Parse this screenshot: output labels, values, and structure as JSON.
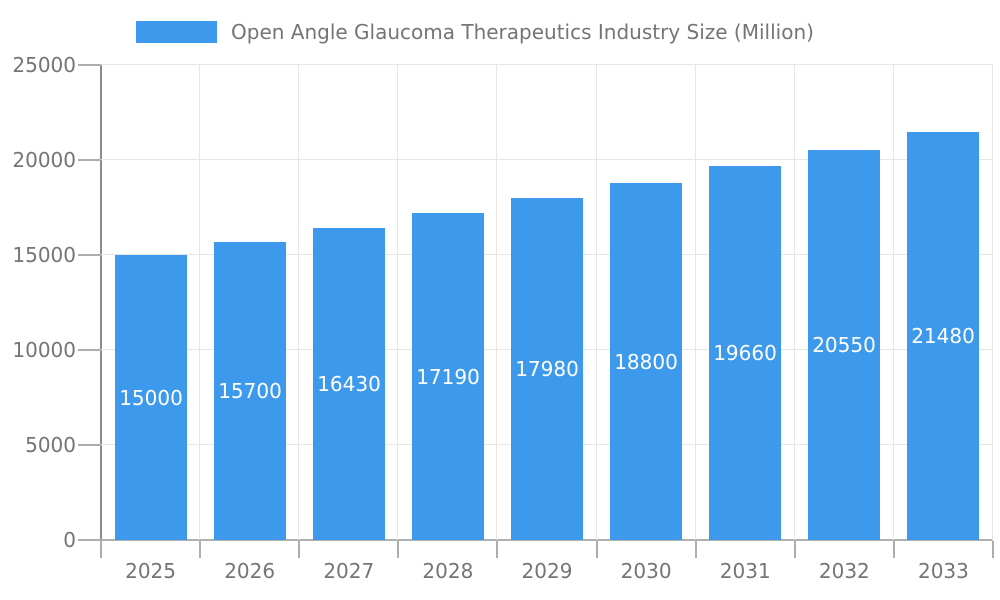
{
  "chart_data": {
    "type": "bar",
    "title": "Open Angle Glaucoma Therapeutics Industry Size (Million)",
    "categories": [
      "2025",
      "2026",
      "2027",
      "2028",
      "2029",
      "2030",
      "2031",
      "2032",
      "2033"
    ],
    "values": [
      15000,
      15700,
      16430,
      17190,
      17980,
      18800,
      19660,
      20550,
      21480
    ],
    "bar_labels": [
      "15000",
      "15700",
      "16430",
      "17190",
      "17980",
      "18800",
      "19660",
      "20550",
      "21480"
    ],
    "xlabel": "",
    "ylabel": "",
    "ylim": [
      0,
      25000
    ],
    "yticks": [
      0,
      5000,
      10000,
      15000,
      20000,
      25000
    ],
    "ytick_labels": [
      "0",
      "5000",
      "10000",
      "15000",
      "20000",
      "25000"
    ],
    "grid": "on",
    "legend_position": "top",
    "colors": {
      "bar": "#3C99EC",
      "bar_value_text": "#FFFFFF",
      "gridline": "#E6E6E6",
      "y_axis_line": "#8C8C8C",
      "x_axis_line": "#B0B0B0",
      "tick": "#ADADAD",
      "axis_text": "#757575",
      "background": "#FFFFFF"
    }
  }
}
